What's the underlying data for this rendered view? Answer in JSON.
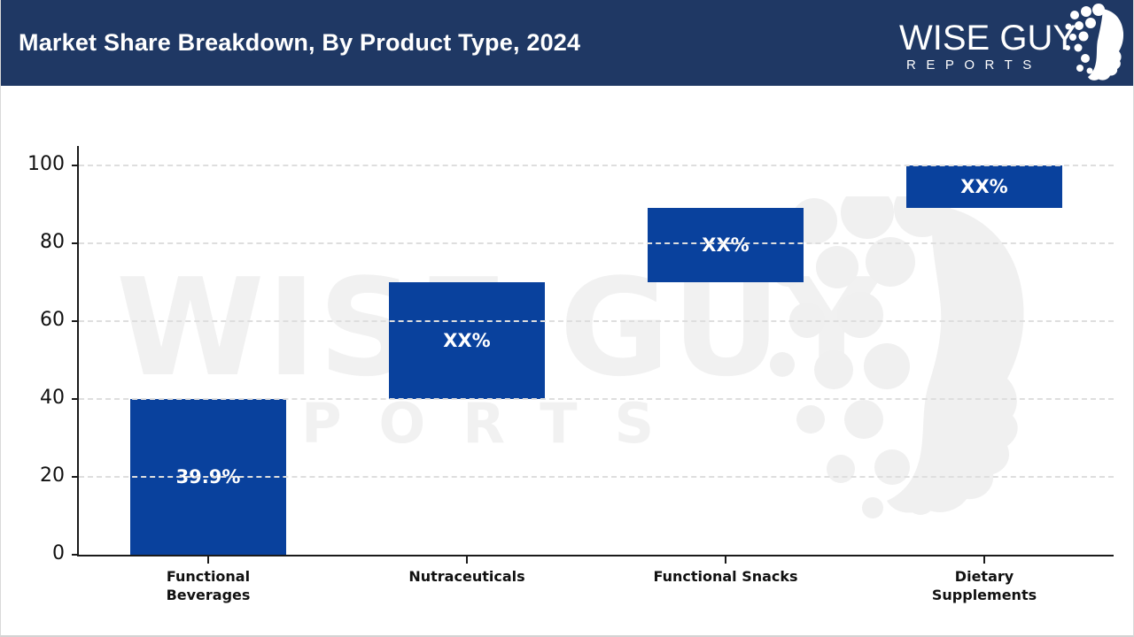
{
  "header": {
    "title": "Market Share Breakdown, By Product Type, 2024",
    "logo": {
      "line1": "WISE GUY",
      "line2": "REPORTS"
    }
  },
  "watermark": {
    "line1": "WISE GUY",
    "line2": "REPORTS"
  },
  "colors": {
    "header_bg": "#1f3864",
    "bar": "#09419d",
    "watermark": "#f1f1f1",
    "gridline": "#dedede",
    "axis": "#1a1a1a",
    "bar_label": "#ffffff"
  },
  "chart_data": {
    "type": "bar",
    "subtype": "floating-range-bars (waterfall style market share)",
    "title": "Market Share Breakdown, By Product Type, 2024",
    "categories": [
      "Functional Beverages",
      "Nutraceuticals",
      "Functional Snacks",
      "Dietary Supplements"
    ],
    "category_lines": [
      [
        "Functional",
        "Beverages"
      ],
      [
        "Nutraceuticals"
      ],
      [
        "Functional Snacks"
      ],
      [
        "Dietary",
        "Supplements"
      ]
    ],
    "segments": [
      [
        0,
        40
      ],
      [
        40,
        70
      ],
      [
        70,
        89
      ],
      [
        89,
        100
      ]
    ],
    "values": [
      39.9,
      30,
      19,
      11
    ],
    "bar_labels": [
      "39.9%",
      "XX%",
      "XX%",
      "XX%"
    ],
    "xlabel": "",
    "ylabel": "",
    "ylim": [
      0,
      100
    ],
    "yticks": [
      0,
      20,
      40,
      60,
      80,
      100
    ],
    "grid": "horizontal-dashed",
    "legend": "none"
  }
}
